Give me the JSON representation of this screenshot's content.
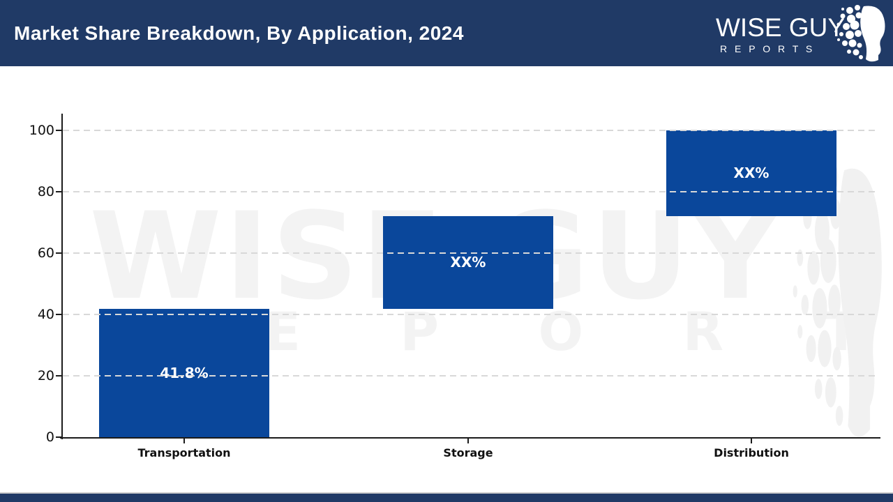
{
  "colors": {
    "navy": "#203a66",
    "bar_blue": "#0a479b",
    "grid_gray": "#d8d8d8",
    "axis_black": "#1b1b1b"
  },
  "header": {
    "title": "Market Share Breakdown, By Application, 2024"
  },
  "logo": {
    "line1": "WISE GUY",
    "line2": "R E P O R T S"
  },
  "watermark": {
    "line1": "WISE GUY",
    "line2": "R E P O R T S"
  },
  "chart_data": {
    "type": "bar",
    "subtype": "waterfall-segments",
    "title": "Market Share Breakdown, By Application, 2024",
    "categories": [
      "Transportation",
      "Storage",
      "Distribution"
    ],
    "series": [
      {
        "name": "Market Share %",
        "values": [
          41.8,
          30.3,
          27.9
        ]
      }
    ],
    "segments": [
      {
        "category": "Transportation",
        "start": 0,
        "end": 41.8,
        "label": "41.8%"
      },
      {
        "category": "Storage",
        "start": 41.8,
        "end": 72.1,
        "label": "XX%"
      },
      {
        "category": "Distribution",
        "start": 72.1,
        "end": 100,
        "label": "XX%"
      }
    ],
    "xlabel": "",
    "ylabel": "",
    "ylim": [
      0,
      100
    ],
    "yticks": [
      0,
      20,
      40,
      60,
      80,
      100
    ],
    "grid": "horizontal-dashed",
    "legend": "none",
    "bar_color": "#0a479b",
    "bar_label_color": "#ffffff"
  }
}
